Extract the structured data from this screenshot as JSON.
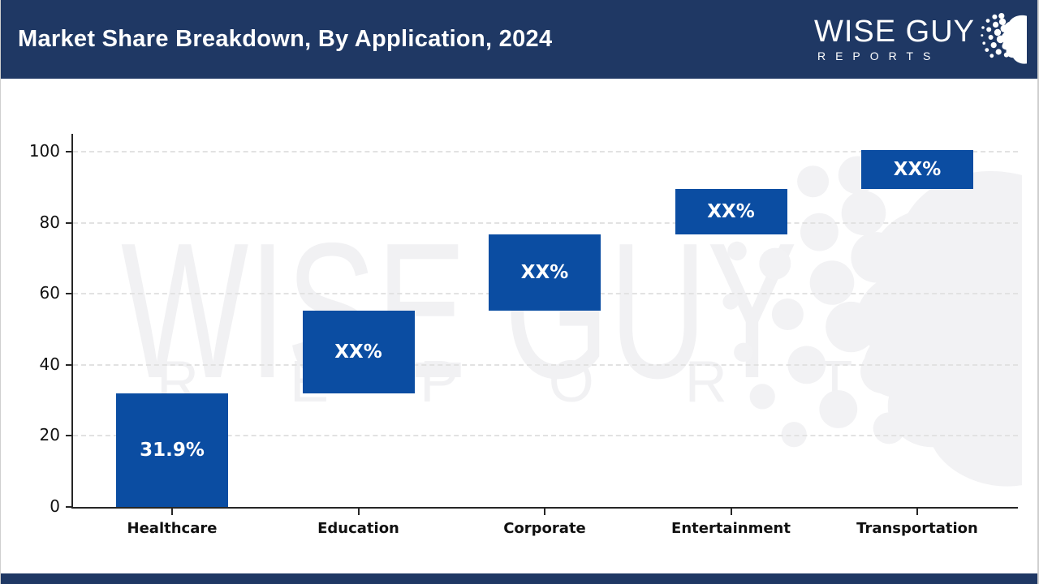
{
  "header": {
    "bg_color": "#1F3864",
    "title": "Market Share Breakdown, By Application, 2024",
    "logo": {
      "line1": "WISE GUY",
      "line2": "REPORTS",
      "icon": "dotted-face-profile",
      "color": "#ffffff"
    }
  },
  "watermark": {
    "line1": "WISE GUY",
    "line2": "R E P O R T S",
    "color": "#f1f1f3"
  },
  "chart_data": {
    "type": "bar",
    "subtype": "waterfall (stacked cumulative market-share segments, floating bars)",
    "title": "Market Share Breakdown, By Application, 2024",
    "categories": [
      "Healthcare",
      "Education",
      "Corporate",
      "Entertainment",
      "Transportation"
    ],
    "series": [
      {
        "name": "Market share (%)",
        "segments": [
          {
            "category": "Healthcare",
            "start": 0,
            "end": 31.9,
            "label": "31.9%"
          },
          {
            "category": "Education",
            "start": 31.9,
            "end": 55.2,
            "label": "XX%"
          },
          {
            "category": "Corporate",
            "start": 55.2,
            "end": 76.8,
            "label": "XX%"
          },
          {
            "category": "Entertainment",
            "start": 76.8,
            "end": 89.5,
            "label": "XX%"
          },
          {
            "category": "Transportation",
            "start": 89.5,
            "end": 100.4,
            "label": "XX%"
          }
        ]
      }
    ],
    "xlabel": "",
    "ylabel": "",
    "ylim": [
      0,
      104
    ],
    "yticks": [
      0,
      20,
      40,
      60,
      80,
      100
    ],
    "grid": "horizontal dashed gridlines at y ticks",
    "legend": "none",
    "bar_color": "#0B4DA2",
    "bar_label_color": "#ffffff",
    "grid_color": "#e2e2e2",
    "axis_color": "#262626",
    "tick_label_color": "#111111"
  },
  "footer": {
    "bg_color": "#1F3864"
  }
}
